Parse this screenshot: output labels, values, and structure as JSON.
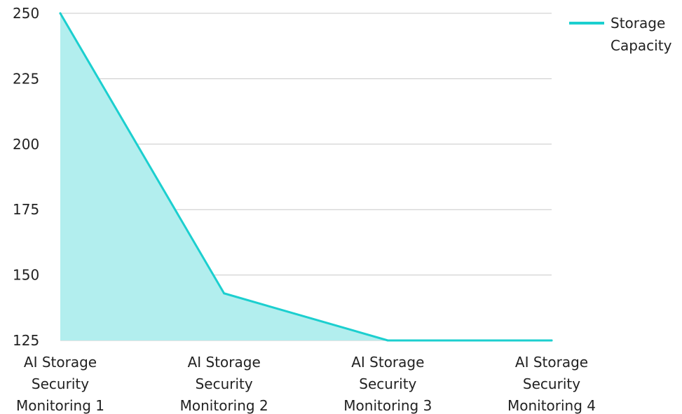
{
  "chart_data": {
    "type": "area",
    "title": "",
    "xlabel": "",
    "ylabel": "",
    "categories": [
      "AI Storage Security Monitoring 1",
      "AI Storage Security Monitoring 2",
      "AI Storage Security Monitoring 3",
      "AI Storage Security Monitoring 4"
    ],
    "category_lines": [
      [
        "AI Storage",
        "Security",
        "Monitoring 1"
      ],
      [
        "AI Storage",
        "Security",
        "Monitoring 2"
      ],
      [
        "AI Storage",
        "Security",
        "Monitoring 3"
      ],
      [
        "AI Storage",
        "Security",
        "Monitoring 4"
      ]
    ],
    "series": [
      {
        "name": "Storage Capacity",
        "values": [
          250,
          143,
          125,
          125
        ],
        "color": "#1ccfcf",
        "fill_color": "#b2eeee"
      }
    ],
    "ylim": [
      125,
      250
    ],
    "yticks": [
      125,
      150,
      175,
      200,
      225,
      250
    ],
    "grid": true,
    "grid_color": "#c8c8c8",
    "legend": {
      "position": "top-right",
      "label_lines": [
        "Storage",
        "Capacity"
      ]
    }
  }
}
